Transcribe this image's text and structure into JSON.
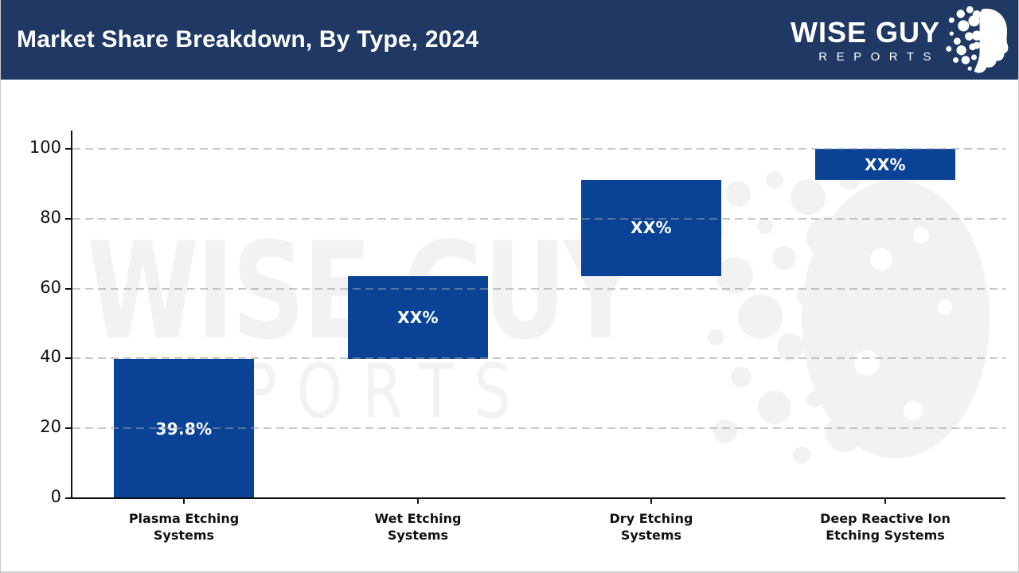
{
  "header": {
    "title": "Market Share Breakdown, By Type, 2024",
    "logo": {
      "name": "WISE GUY",
      "sub": "REPORTS"
    }
  },
  "watermark": {
    "line1": "WISE GUY",
    "line2": "REPORTS"
  },
  "chart_data": {
    "type": "bar",
    "subtype": "floating-waterfall-segments",
    "title": "Market Share Breakdown, By Type, 2024",
    "xlabel": "",
    "ylabel": "",
    "categories": [
      "Plasma Etching Systems",
      "Wet Etching Systems",
      "Dry Etching Systems",
      "Deep Reactive Ion Etching Systems"
    ],
    "category_lines": [
      [
        "Plasma Etching",
        "Systems"
      ],
      [
        "Wet Etching",
        "Systems"
      ],
      [
        "Dry Etching",
        "Systems"
      ],
      [
        "Deep Reactive Ion",
        "Etching Systems"
      ]
    ],
    "segments": [
      {
        "category": "Plasma Etching Systems",
        "start": 0,
        "end": 39.8,
        "label": "39.8%"
      },
      {
        "category": "Wet Etching Systems",
        "start": 39.8,
        "end": 63.6,
        "label": "XX%"
      },
      {
        "category": "Dry Etching Systems",
        "start": 63.6,
        "end": 91.1,
        "label": "XX%"
      },
      {
        "category": "Deep Reactive Ion Etching Systems",
        "start": 91.1,
        "end": 100,
        "label": "XX%"
      }
    ],
    "y_axis": {
      "min": 0,
      "max": 100,
      "ticks": [
        0,
        20,
        40,
        60,
        80,
        100
      ]
    },
    "grid": "horizontal-dashed",
    "legend": null,
    "bar_color": "#0a4396"
  },
  "colors": {
    "bar_blue": "#0a4396",
    "header_navy": "#1f3864",
    "grid_gray": "#cdd1d7",
    "text_black": "#111111",
    "watermark_gray": "#f2f2f2",
    "background": "#ffffff"
  }
}
